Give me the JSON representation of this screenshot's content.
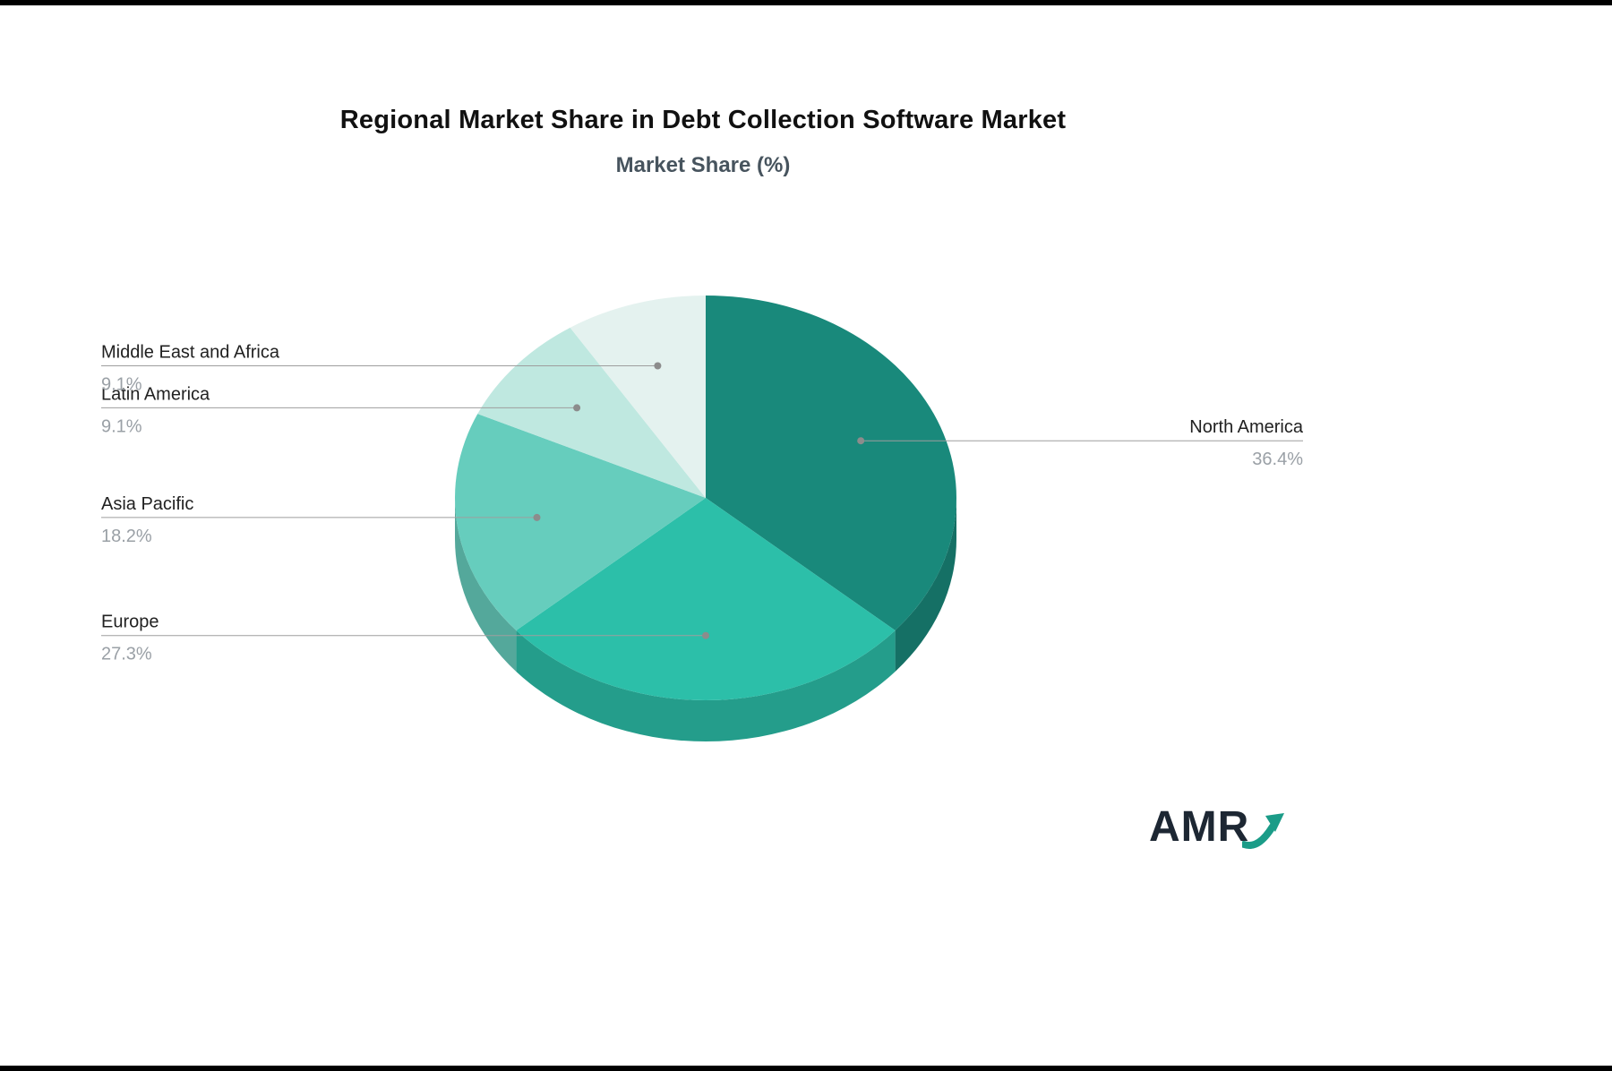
{
  "header": {
    "title": "Regional Market Share in Debt Collection Software Market",
    "subtitle": "Market Share (%)"
  },
  "chart_data": {
    "type": "pie",
    "title": "Regional Market Share in Debt Collection Software Market",
    "subtitle": "Market Share (%)",
    "unit": "%",
    "start_angle_deg": 0,
    "direction": "clockwise",
    "style": "3d-pie",
    "legend_position": "none",
    "labels_shown": true,
    "slices": [
      {
        "label": "North America",
        "value": 36.4,
        "color": "#19897b",
        "label_side": "right"
      },
      {
        "label": "Europe",
        "value": 27.3,
        "color": "#2cbfa9",
        "label_side": "left"
      },
      {
        "label": "Asia Pacific",
        "value": 18.2,
        "color": "#66cdbd",
        "label_side": "left"
      },
      {
        "label": "Latin America",
        "value": 9.1,
        "color": "#bfe8e0",
        "label_side": "left"
      },
      {
        "label": "Middle East and Africa",
        "value": 9.1,
        "color": "#e4f2ef",
        "label_side": "left"
      }
    ],
    "label_colors": {
      "name": "#212121",
      "percent": "#9aa0a6"
    },
    "leader_line_color": "#9e9e9e"
  },
  "logo": {
    "text": "AMR",
    "arrow_color": "#1b9c88"
  }
}
